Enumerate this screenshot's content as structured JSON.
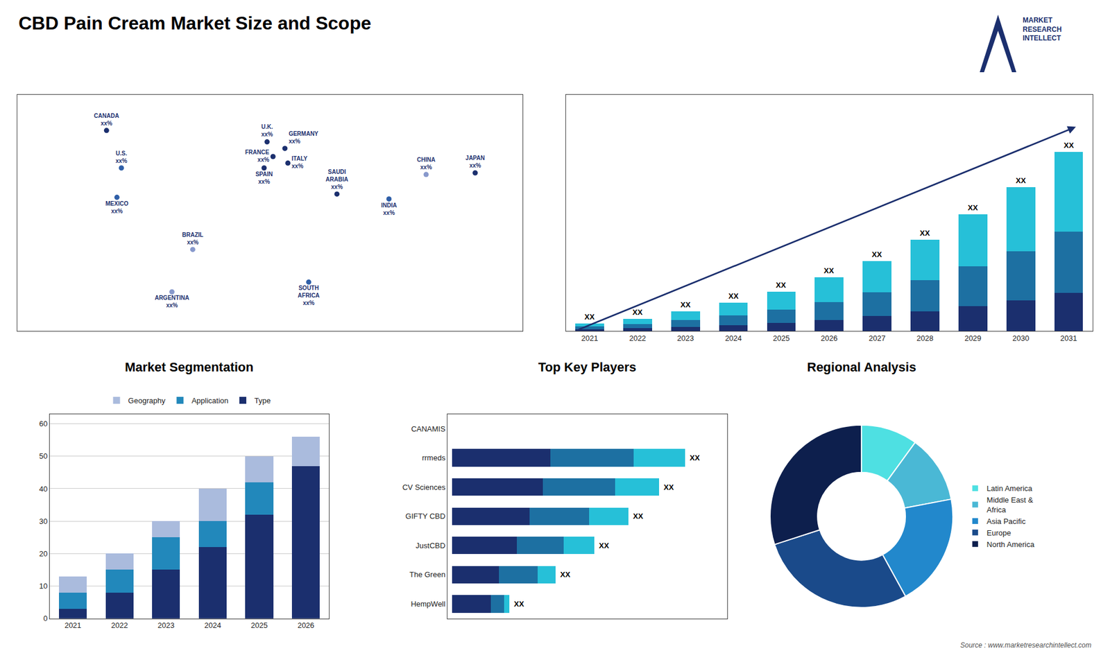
{
  "title": "CBD Pain Cream Market Size and Scope",
  "annotations": [
    {
      "text": "MARKET\nRESEARCH\nINTELLECT"
    },
    {
      "text": "Source : www.marketresearchintellect.com"
    }
  ],
  "chart_data": [
    {
      "type": "scatter",
      "x": [
        -110,
        -100,
        -103,
        -52,
        -66,
        -2,
        2,
        -4,
        10,
        12,
        26,
        45,
        105,
        80,
        138
      ],
      "values": [
        63,
        40,
        22,
        -10,
        -36,
        56,
        47,
        40,
        52,
        43,
        -30,
        24,
        36,
        21,
        37
      ],
      "categories": [
        "CANADA\nxx%",
        "U.S.\nxx%",
        "MEXICO\nxx%",
        "BRAZIL\nxx%",
        "ARGENTINA\nxx%",
        "U.K.\nxx%",
        "FRANCE\nxx%",
        "SPAIN\nxx%",
        "GERMANY\nxx%",
        "ITALY\nxx%",
        "SOUTH\nAFRICA\nxx%",
        "SAUDI\nARABIA\nxx%",
        "CHINA\nxx%",
        "INDIA\nxx%",
        "JAPAN\nxx%"
      ],
      "colors": [
        "#1b2f6e",
        "#2f5fa8",
        "#2f5fa8",
        "#8899cc",
        "#8899cc",
        "#1b2f6e",
        "#1b2f6e",
        "#1b2f6e",
        "#1b2f6e",
        "#1b2f6e",
        "#2f5fa8",
        "#1b2f6e",
        "#8899cc",
        "#2f5fa8",
        "#1b2f6e"
      ],
      "marker": "circle",
      "xlim": [
        -170,
        170
      ],
      "ylim": [
        -60,
        85
      ],
      "tick_labels": false,
      "grid": false
    },
    {
      "type": "bar",
      "stacked": true,
      "categories": [
        "2021",
        "2022",
        "2023",
        "2024",
        "2025",
        "2026",
        "2027",
        "2028",
        "2029",
        "2030",
        "2031"
      ],
      "series": [
        {
          "color": "#1b2f6e",
          "values": [
            1.2,
            1.8,
            2.8,
            4.0,
            5.5,
            7.5,
            10.0,
            13.0,
            16.5,
            20.5,
            25.5
          ]
        },
        {
          "color": "#1d70a2",
          "values": [
            1.8,
            2.8,
            4.5,
            6.5,
            9.0,
            12.0,
            16.0,
            21.0,
            27.0,
            33.0,
            41.0
          ]
        },
        {
          "color": "#26c0d8",
          "values": [
            2.0,
            3.4,
            5.7,
            8.5,
            12.0,
            16.5,
            21.0,
            27.0,
            34.5,
            43.0,
            53.5
          ]
        }
      ],
      "ylim": [
        0,
        158.4
      ],
      "tick_labels": "x",
      "grid": false,
      "annotations": [
        {
          "category": "2021",
          "text": "XX"
        },
        {
          "category": "2022",
          "text": "XX"
        },
        {
          "category": "2023",
          "text": "XX"
        },
        {
          "category": "2024",
          "text": "XX"
        },
        {
          "category": "2025",
          "text": "XX"
        },
        {
          "category": "2026",
          "text": "XX"
        },
        {
          "category": "2027",
          "text": "XX"
        },
        {
          "category": "2028",
          "text": "XX"
        },
        {
          "category": "2029",
          "text": "XX"
        },
        {
          "category": "2030",
          "text": "XX"
        },
        {
          "category": "2031",
          "text": "XX"
        }
      ]
    },
    {
      "type": "bar",
      "title": "Market Segmentation",
      "stacked": true,
      "categories": [
        "2021",
        "2022",
        "2023",
        "2024",
        "2025",
        "2026"
      ],
      "series": [
        {
          "name": "Type",
          "color": "#1b2f6e",
          "values": [
            3,
            8,
            15,
            22,
            32,
            47
          ]
        },
        {
          "name": "Application",
          "color": "#2288bb",
          "values": [
            5,
            7,
            10,
            8,
            10,
            0
          ]
        },
        {
          "name": "Geography",
          "color": "#aabbdd",
          "values": [
            5,
            5,
            5,
            10,
            8,
            9
          ]
        }
      ],
      "ylim": [
        0,
        63
      ],
      "yticks": [
        0,
        10,
        20,
        30,
        40,
        50,
        60
      ],
      "grid": true,
      "legend": "top"
    },
    {
      "type": "bar",
      "title": "Top Key Players",
      "stacked": true,
      "orientation": "horizontal",
      "categories": [
        "CANAMIS",
        "rrmeds",
        "CV Sciences",
        "GIFTY CBD",
        "JustCBD",
        "The Green",
        "HempWell"
      ],
      "series": [
        {
          "color": "#1b2f6e",
          "values": [
            0.0,
            3.8,
            3.5,
            3.0,
            2.5,
            1.8,
            1.5
          ]
        },
        {
          "color": "#1d70a2",
          "values": [
            0.0,
            3.2,
            2.8,
            2.3,
            1.8,
            1.5,
            0.5
          ]
        },
        {
          "color": "#26c0d8",
          "values": [
            0.0,
            2.0,
            1.7,
            1.5,
            1.2,
            0.7,
            0.2
          ]
        }
      ],
      "xlim": [
        -0.18,
        10.62
      ],
      "tick_labels": "y",
      "grid": false,
      "annotations": [
        {
          "category": "rrmeds",
          "text": "XX"
        },
        {
          "category": "CV Sciences",
          "text": "XX"
        },
        {
          "category": "GIFTY CBD",
          "text": "XX"
        },
        {
          "category": "JustCBD",
          "text": "XX"
        },
        {
          "category": "The Green",
          "text": "XX"
        },
        {
          "category": "HempWell",
          "text": "XX"
        }
      ]
    },
    {
      "type": "pie",
      "title": "Regional Analysis",
      "categories": [
        "Latin America",
        "Middle East &\nAfrica",
        "Asia Pacific",
        "Europe",
        "North America"
      ],
      "values": [
        10,
        12,
        20,
        28,
        30
      ],
      "colors": [
        "#4ee0e2",
        "#4ab8d5",
        "#2288cc",
        "#1a4a8a",
        "#0d1f4d"
      ],
      "legend": "right"
    }
  ]
}
